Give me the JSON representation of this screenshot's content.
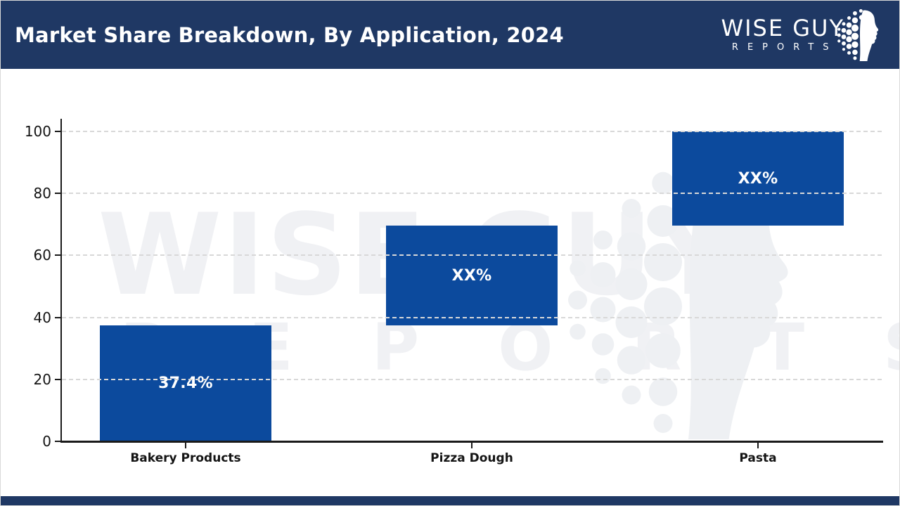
{
  "header": {
    "title": "Market Share Breakdown, By Application, 2024",
    "logo": {
      "primary": "WISE GUY",
      "secondary": "REPORTS"
    }
  },
  "watermark": {
    "primary": "WISE GUY",
    "secondary": "R E P O R T S"
  },
  "chart_data": {
    "type": "bar",
    "subtype": "floating-waterfall",
    "title": "Market Share Breakdown, By Application, 2024",
    "categories": [
      "Bakery Products",
      "Pizza Dough",
      "Pasta"
    ],
    "series": [
      {
        "name": "Market Share (%)",
        "segments": [
          {
            "category": "Bakery Products",
            "from": 0,
            "to": 37.4,
            "label": "37.4%"
          },
          {
            "category": "Pizza Dough",
            "from": 37.4,
            "to": 69.6,
            "label": "XX%"
          },
          {
            "category": "Pasta",
            "from": 69.6,
            "to": 100,
            "label": "XX%"
          }
        ]
      }
    ],
    "y_ticks": [
      0,
      20,
      40,
      60,
      80,
      100
    ],
    "ylim": [
      0,
      105
    ],
    "xlabel": "",
    "ylabel": "",
    "grid": {
      "horizontal": true,
      "style": "dashed"
    },
    "legend": "none",
    "colors": {
      "bar": "#0c4a9d",
      "header_bg": "#1f3864",
      "grid_line": "#d8d8d8",
      "bar_label_text": "#ffffff",
      "axis": "#1a1a1a",
      "watermark": "#f0f1f4"
    }
  }
}
